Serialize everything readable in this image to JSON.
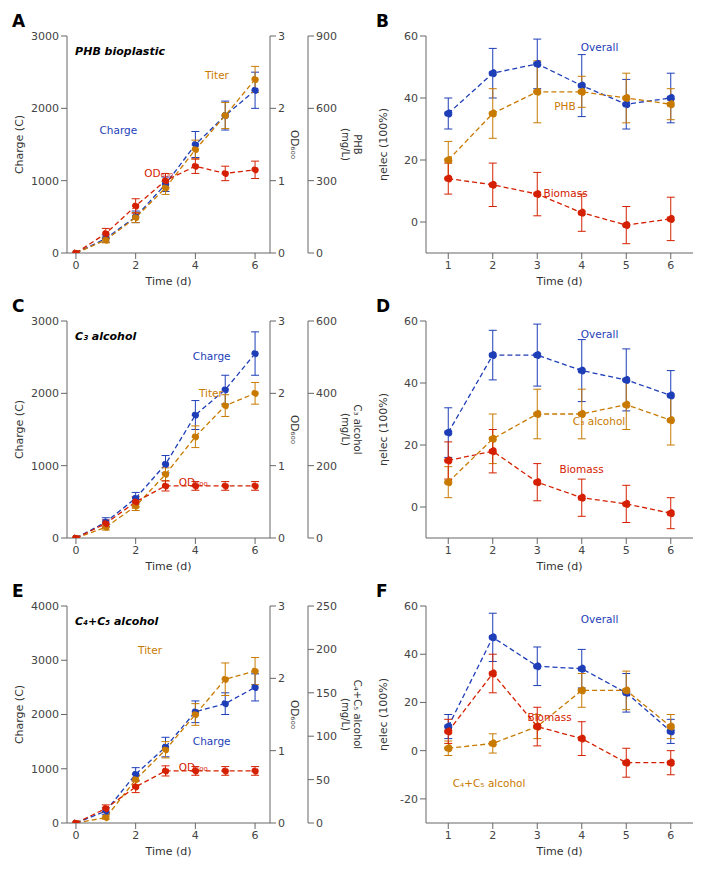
{
  "chart_data": [
    {
      "type": "line",
      "annotations": [
        "A"
      ],
      "title": "PHB bioplastic",
      "xlabel": "Time (d)",
      "ylabel": "Charge (C)",
      "y2label": "OD₆₀₀",
      "y3label": "PHB\n(mg/L)",
      "x": [
        0,
        1,
        2,
        3,
        4,
        5,
        6
      ],
      "xlim": [
        -0.3,
        6.5
      ],
      "xticks": [
        0,
        2,
        4,
        6
      ],
      "ylim": [
        0,
        3000
      ],
      "yticks": [
        0,
        1000,
        2000,
        3000
      ],
      "y2lim": [
        0,
        3
      ],
      "y2ticks": [
        0,
        1,
        2,
        3
      ],
      "y3lim": [
        0,
        900
      ],
      "y3ticks": [
        0,
        300,
        600,
        900
      ],
      "marker": "circle",
      "line_style": "dashed",
      "grid": false,
      "series": [
        {
          "name": "Charge",
          "color": "#1e3eb8",
          "values": [
            0,
            200,
            500,
            950,
            1500,
            1900,
            2250
          ],
          "yerr": [
            0,
            50,
            80,
            100,
            180,
            200,
            250
          ]
        },
        {
          "name": "Titer",
          "color": "#c87a00",
          "values": [
            0,
            180,
            490,
            900,
            1430,
            1900,
            2400
          ],
          "yerr": [
            0,
            40,
            70,
            90,
            130,
            180,
            180
          ]
        },
        {
          "name": "OD₆₀₀",
          "color": "#d42000",
          "axis": "y2",
          "values": [
            0,
            0.27,
            0.65,
            1.0,
            1.2,
            1.1,
            1.15
          ],
          "yerr": [
            0,
            0.07,
            0.1,
            0.1,
            0.1,
            0.1,
            0.12
          ]
        }
      ]
    },
    {
      "type": "line",
      "annotations": [
        "B"
      ],
      "xlabel": "Time (d)",
      "ylabel": "ηelec (100%)",
      "x": [
        1,
        2,
        3,
        4,
        5,
        6
      ],
      "xlim": [
        0.5,
        6.5
      ],
      "xticks": [
        1,
        2,
        3,
        4,
        5,
        6
      ],
      "ylim": [
        -10,
        60
      ],
      "yticks": [
        0,
        20,
        40,
        60
      ],
      "marker": "circle",
      "line_style": "dashed",
      "grid": false,
      "series": [
        {
          "name": "Overall",
          "color": "#1e3eb8",
          "values": [
            35,
            48,
            51,
            44,
            38,
            40
          ],
          "yerr": [
            5,
            8,
            8,
            10,
            8,
            8
          ]
        },
        {
          "name": "PHB",
          "color": "#c87a00",
          "values": [
            20,
            35,
            42,
            42,
            40,
            38
          ],
          "yerr": [
            6,
            8,
            10,
            5,
            8,
            5
          ]
        },
        {
          "name": "Biomass",
          "color": "#d42000",
          "values": [
            14,
            12,
            9,
            3,
            -1,
            1
          ],
          "yerr": [
            5,
            7,
            7,
            6,
            6,
            7
          ]
        }
      ]
    },
    {
      "type": "line",
      "annotations": [
        "C"
      ],
      "title": "C₃ alcohol",
      "xlabel": "Time (d)",
      "ylabel": "Charge (C)",
      "y2label": "OD₆₀₀",
      "y3label": "C₃ alcohol\n(mg/L)",
      "x": [
        0,
        1,
        2,
        3,
        4,
        5,
        6
      ],
      "xlim": [
        -0.3,
        6.5
      ],
      "xticks": [
        0,
        2,
        4,
        6
      ],
      "ylim": [
        0,
        3000
      ],
      "yticks": [
        0,
        1000,
        2000,
        3000
      ],
      "y2lim": [
        0,
        3
      ],
      "y2ticks": [
        0,
        1,
        2,
        3
      ],
      "y3lim": [
        0,
        600
      ],
      "y3ticks": [
        0,
        200,
        400,
        600
      ],
      "marker": "circle",
      "line_style": "dashed",
      "grid": false,
      "series": [
        {
          "name": "Charge",
          "color": "#1e3eb8",
          "values": [
            0,
            220,
            550,
            1020,
            1700,
            2050,
            2550
          ],
          "yerr": [
            0,
            60,
            80,
            120,
            200,
            200,
            300
          ]
        },
        {
          "name": "Titer",
          "color": "#c87a00",
          "values": [
            0,
            150,
            440,
            880,
            1400,
            1830,
            2000
          ],
          "yerr": [
            0,
            40,
            60,
            90,
            150,
            150,
            150
          ]
        },
        {
          "name": "OD₆₀₀",
          "color": "#d42000",
          "axis": "y2",
          "values": [
            0,
            0.2,
            0.5,
            0.72,
            0.72,
            0.72,
            0.72
          ],
          "yerr": [
            0,
            0.05,
            0.07,
            0.07,
            0.06,
            0.06,
            0.06
          ]
        }
      ]
    },
    {
      "type": "line",
      "annotations": [
        "D"
      ],
      "xlabel": "Time (d)",
      "ylabel": "ηelec (100%)",
      "x": [
        1,
        2,
        3,
        4,
        5,
        6
      ],
      "xlim": [
        0.5,
        6.5
      ],
      "xticks": [
        1,
        2,
        3,
        4,
        5,
        6
      ],
      "ylim": [
        -10,
        60
      ],
      "yticks": [
        0,
        20,
        40,
        60
      ],
      "marker": "circle",
      "line_style": "dashed",
      "grid": false,
      "series": [
        {
          "name": "Overall",
          "color": "#1e3eb8",
          "values": [
            24,
            49,
            49,
            44,
            41,
            36
          ],
          "yerr": [
            8,
            8,
            10,
            10,
            10,
            8
          ]
        },
        {
          "name": "C₃ alcohol",
          "color": "#c87a00",
          "values": [
            8,
            22,
            30,
            30,
            33,
            28
          ],
          "yerr": [
            5,
            8,
            8,
            8,
            8,
            8
          ]
        },
        {
          "name": "Biomass",
          "color": "#d42000",
          "values": [
            15,
            18,
            8,
            3,
            1,
            -2
          ],
          "yerr": [
            6,
            7,
            6,
            6,
            6,
            5
          ]
        }
      ]
    },
    {
      "type": "line",
      "annotations": [
        "E"
      ],
      "title": "C₄+C₅ alcohol",
      "xlabel": "Time (d)",
      "ylabel": "Charge (C)",
      "y2label": "OD₆₀₀",
      "y3label": "C₄+C₅ alcohol\n(mg/L)",
      "x": [
        0,
        1,
        2,
        3,
        4,
        5,
        6
      ],
      "xlim": [
        -0.3,
        6.5
      ],
      "xticks": [
        0,
        2,
        4,
        6
      ],
      "ylim": [
        0,
        4000
      ],
      "yticks": [
        0,
        1000,
        2000,
        3000,
        4000
      ],
      "y2lim": [
        0,
        3
      ],
      "y2ticks": [
        0,
        1,
        2,
        3
      ],
      "y3lim": [
        0,
        250
      ],
      "y3ticks": [
        0,
        50,
        100,
        150,
        200,
        250
      ],
      "marker": "circle",
      "line_style": "dashed",
      "grid": false,
      "series": [
        {
          "name": "Charge",
          "color": "#1e3eb8",
          "values": [
            0,
            220,
            900,
            1400,
            2050,
            2200,
            2500
          ],
          "yerr": [
            0,
            60,
            120,
            180,
            200,
            200,
            250
          ]
        },
        {
          "name": "Titer",
          "color": "#c87a00",
          "values": [
            0,
            100,
            800,
            1350,
            2000,
            2650,
            2800
          ],
          "yerr": [
            0,
            30,
            100,
            150,
            200,
            300,
            250
          ]
        },
        {
          "name": "OD₆₀₀",
          "color": "#d42000",
          "axis": "y2",
          "values": [
            0,
            0.2,
            0.5,
            0.72,
            0.72,
            0.72,
            0.72
          ],
          "yerr": [
            0,
            0.05,
            0.08,
            0.07,
            0.06,
            0.06,
            0.06
          ]
        }
      ]
    },
    {
      "type": "line",
      "annotations": [
        "F"
      ],
      "xlabel": "Time (d)",
      "ylabel": "ηelec (100%)",
      "x": [
        1,
        2,
        3,
        4,
        5,
        6
      ],
      "xlim": [
        0.5,
        6.5
      ],
      "xticks": [
        1,
        2,
        3,
        4,
        5,
        6
      ],
      "ylim": [
        -30,
        60
      ],
      "yticks": [
        -20,
        0,
        20,
        40,
        60
      ],
      "marker": "circle",
      "line_style": "dashed",
      "grid": false,
      "series": [
        {
          "name": "Overall",
          "color": "#1e3eb8",
          "values": [
            10,
            47,
            35,
            34,
            24,
            8
          ],
          "yerr": [
            5,
            10,
            8,
            8,
            8,
            5
          ]
        },
        {
          "name": "C₄+C₅ alcohol",
          "color": "#c87a00",
          "values": [
            1,
            3,
            10,
            25,
            25,
            10
          ],
          "yerr": [
            3,
            4,
            5,
            7,
            8,
            5
          ]
        },
        {
          "name": "Biomass",
          "color": "#d42000",
          "values": [
            8,
            32,
            10,
            5,
            -5,
            -5
          ],
          "yerr": [
            5,
            8,
            8,
            7,
            6,
            5
          ]
        }
      ]
    }
  ]
}
